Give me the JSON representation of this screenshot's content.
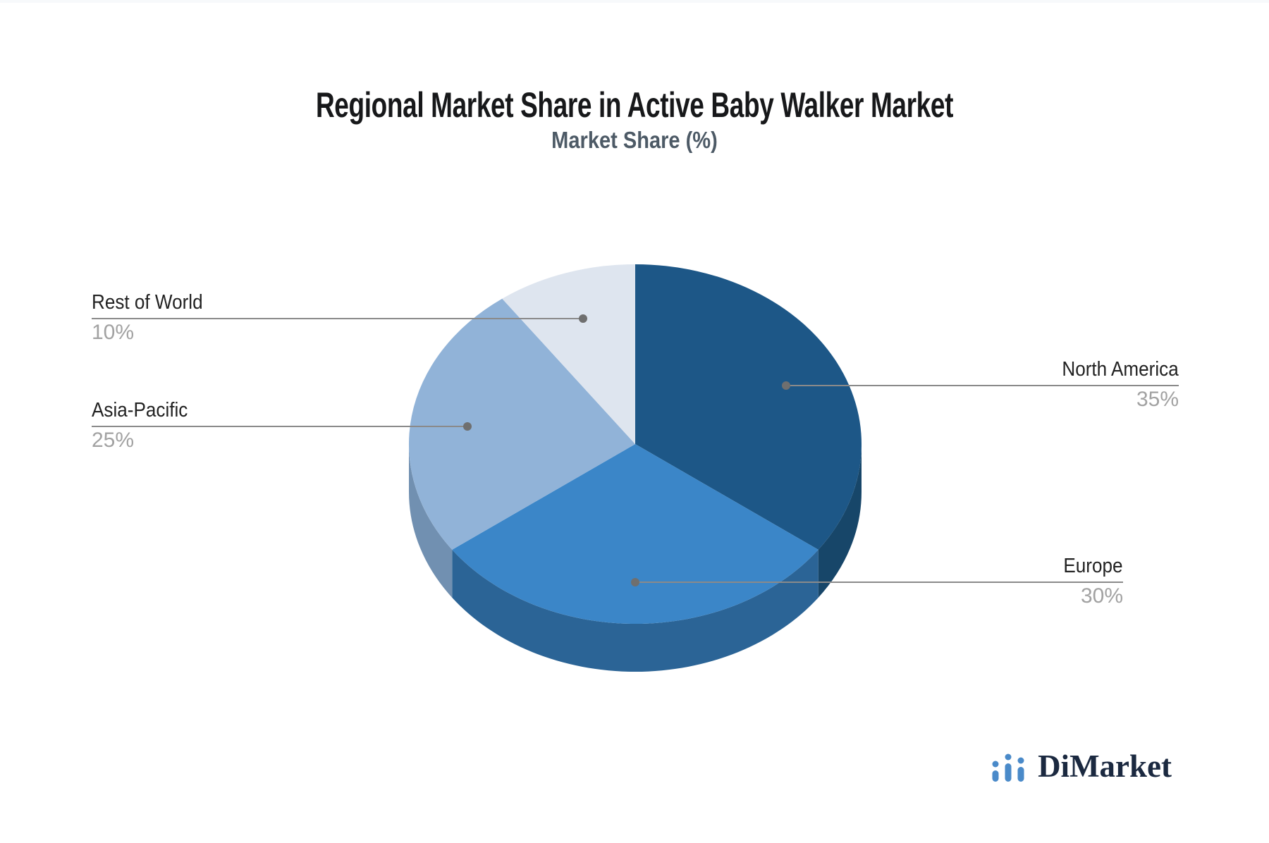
{
  "chart_data": {
    "type": "pie",
    "style_3d": true,
    "title": "Regional Market Share in Active Baby Walker Market",
    "subtitle": "Market Share (%)",
    "unit": "%",
    "direction": "clockwise",
    "start_angle_deg": 0,
    "categories": [
      "North America",
      "Europe",
      "Asia-Pacific",
      "Rest of World"
    ],
    "values": [
      35,
      30,
      25,
      10
    ],
    "slices": [
      {
        "label": "North America",
        "value": 35,
        "display": "35%",
        "color": "#1d5787",
        "side_color": "#174669",
        "label_side": "right"
      },
      {
        "label": "Europe",
        "value": 30,
        "display": "30%",
        "color": "#3b86c8",
        "side_color": "#2b6496",
        "label_side": "right"
      },
      {
        "label": "Asia-Pacific",
        "value": 25,
        "display": "25%",
        "color": "#91b3d8",
        "side_color": "#7190b1",
        "label_side": "left"
      },
      {
        "label": "Rest of World",
        "value": 10,
        "display": "10%",
        "color": "#dee5ef",
        "side_color": "#c2cdda",
        "label_side": "left"
      }
    ],
    "legend": "none",
    "labels_style": "callout-leader-lines"
  },
  "palette": {
    "background": "#ffffff",
    "leader_line": "#8a8a8a",
    "dot": "#6f6f6f",
    "label_text": "#222222",
    "pct_text": "#a2a2a2",
    "title_text": "#17181a",
    "subtitle_text": "#4d5a66"
  },
  "branding": {
    "logo_text": "DiMarket",
    "logo_icon": "bar-chart-icon",
    "logo_text_color": "#1b2940",
    "logo_icon_color": "#4a8ac9"
  }
}
